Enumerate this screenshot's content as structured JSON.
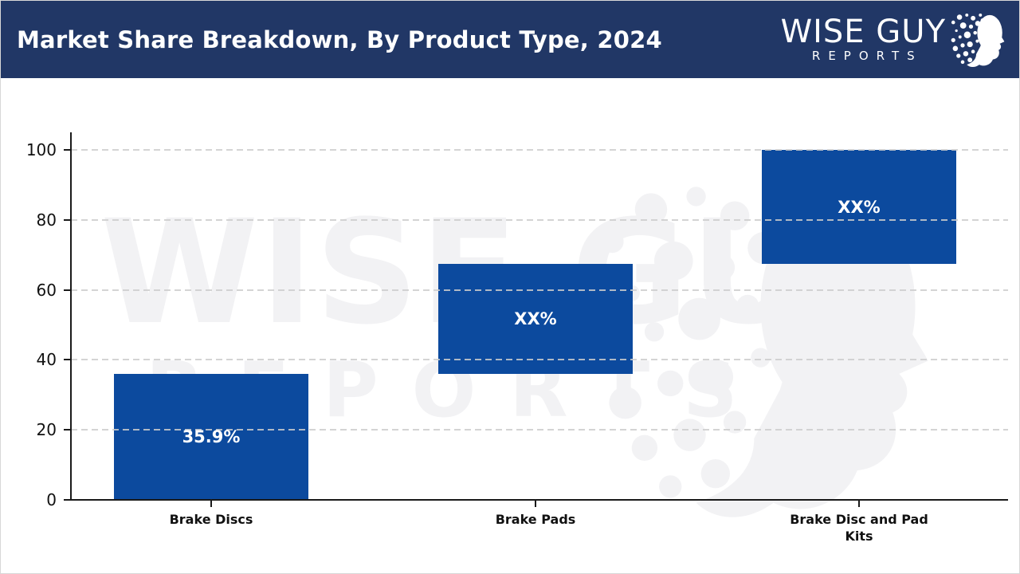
{
  "header": {
    "title": "Market Share Breakdown, By Product Type, 2024",
    "logo": {
      "name": "WISE GUY",
      "tagline": "REPORTS"
    }
  },
  "watermark": {
    "name": "WISE GUY",
    "tagline": "REPORTS"
  },
  "chart_data": {
    "type": "bar",
    "subtype": "cumulative-stacked-waterfall",
    "title": "Market Share Breakdown, By Product Type, 2024",
    "categories": [
      "Brake Discs",
      "Brake Pads",
      "Brake Disc and Pad Kits"
    ],
    "segments": [
      {
        "category": "Brake Discs",
        "start": 0,
        "end": 35.9,
        "label": "35.9%"
      },
      {
        "category": "Brake Pads",
        "start": 35.9,
        "end": 67.4,
        "label": "XX%"
      },
      {
        "category": "Brake Disc and Pad Kits",
        "start": 67.4,
        "end": 100,
        "label": "XX%"
      }
    ],
    "values": [
      35.9,
      31.5,
      32.6
    ],
    "xlabel": "",
    "ylabel": "",
    "ylim": [
      0,
      100
    ],
    "yticks": [
      0,
      20,
      40,
      60,
      80,
      100
    ],
    "grid": "horizontal-dashed",
    "legend": "none",
    "colors": {
      "bar": "#0c4a9e",
      "header": "#213766",
      "gridline": "#cdcdcd",
      "watermark": "#f2f2f4",
      "value_label": "#ffffff",
      "axis": "#1a1a1a"
    }
  }
}
